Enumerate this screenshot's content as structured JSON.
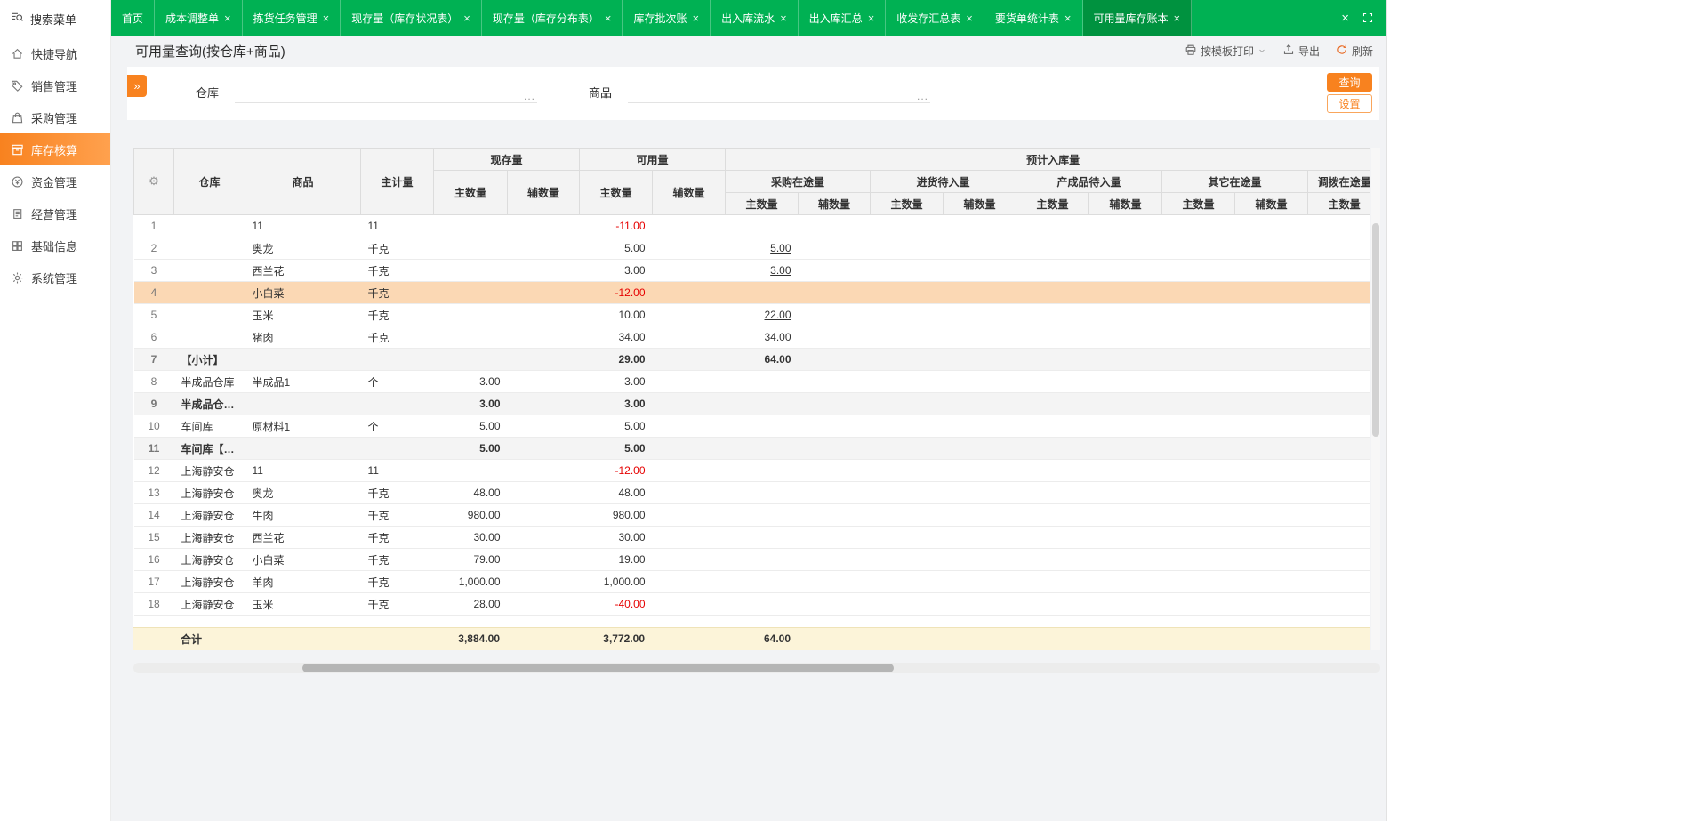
{
  "icons": {
    "gear": "⚙",
    "collapse": "»",
    "close": "×",
    "tab_close": "×",
    "picker_dots": "..."
  },
  "tab_bar": {
    "tabs": [
      {
        "label": "首页",
        "closable": false,
        "active": false
      },
      {
        "label": "成本调整单",
        "closable": true,
        "active": false
      },
      {
        "label": "拣货任务管理",
        "closable": true,
        "active": false
      },
      {
        "label": "现存量（库存状况表）",
        "closable": true,
        "active": false
      },
      {
        "label": "现存量（库存分布表）",
        "closable": true,
        "active": false
      },
      {
        "label": "库存批次账",
        "closable": true,
        "active": false
      },
      {
        "label": "出入库流水",
        "closable": true,
        "active": false
      },
      {
        "label": "出入库汇总",
        "closable": true,
        "active": false
      },
      {
        "label": "收发存汇总表",
        "closable": true,
        "active": false
      },
      {
        "label": "要货单统计表",
        "closable": true,
        "active": false
      },
      {
        "label": "可用量库存账本",
        "closable": true,
        "active": true
      }
    ]
  },
  "sidebar": {
    "search_label": "搜索菜单",
    "items": [
      {
        "id": "quick-nav",
        "icon": "quick-nav-icon",
        "label": "快捷导航",
        "active": false
      },
      {
        "id": "sales",
        "icon": "sales-icon",
        "label": "销售管理",
        "active": false
      },
      {
        "id": "purchase",
        "icon": "purchase-icon",
        "label": "采购管理",
        "active": false
      },
      {
        "id": "inventory",
        "icon": "inventory-icon",
        "label": "库存核算",
        "active": true
      },
      {
        "id": "funds",
        "icon": "funds-icon",
        "label": "资金管理",
        "active": false
      },
      {
        "id": "operations",
        "icon": "operations-icon",
        "label": "经营管理",
        "active": false
      },
      {
        "id": "base-info",
        "icon": "base-info-icon",
        "label": "基础信息",
        "active": false
      },
      {
        "id": "system",
        "icon": "system-icon",
        "label": "系统管理",
        "active": false
      }
    ]
  },
  "page": {
    "title": "可用量查询(按仓库+商品)",
    "tools": {
      "print": "按模板打印",
      "export": "导出",
      "refresh": "刷新"
    }
  },
  "filters": {
    "warehouse_label": "仓库",
    "warehouse_value": "",
    "product_label": "商品",
    "product_value": "",
    "query_button": "查询",
    "settings_button": "设置"
  },
  "table": {
    "headers": {
      "warehouse": "仓库",
      "product": "商品",
      "unit": "主计量",
      "stock_group": "现存量",
      "available_group": "可用量",
      "expected_group": "预计入库量",
      "purchase_transit": "采购在途量",
      "incoming_pending": "进货待入量",
      "finished_pending": "产成品待入量",
      "other_transit": "其它在途量",
      "transfer_transit": "调拨在途量",
      "main_qty": "主数量",
      "aux_qty": "辅数量"
    },
    "rows": [
      {
        "num": "1",
        "warehouse": "",
        "product": "11",
        "unit": "11",
        "avail_main": "-11.00"
      },
      {
        "num": "2",
        "warehouse": "",
        "product": "奥龙",
        "unit": "千克",
        "avail_main": "5.00",
        "purchase_main": "5.00",
        "purchase_link": true
      },
      {
        "num": "3",
        "warehouse": "",
        "product": "西兰花",
        "unit": "千克",
        "avail_main": "3.00",
        "purchase_main": "3.00",
        "purchase_link": true
      },
      {
        "num": "4",
        "warehouse": "",
        "product": "小白菜",
        "unit": "千克",
        "avail_main": "-12.00",
        "style": "highlight"
      },
      {
        "num": "5",
        "warehouse": "",
        "product": "玉米",
        "unit": "千克",
        "avail_main": "10.00",
        "purchase_main": "22.00",
        "purchase_link": true
      },
      {
        "num": "6",
        "warehouse": "",
        "product": "猪肉",
        "unit": "千克",
        "avail_main": "34.00",
        "purchase_main": "34.00",
        "purchase_link": true
      },
      {
        "num": "7",
        "warehouse": "【小计】",
        "avail_main": "29.00",
        "purchase_main": "64.00",
        "style": "subtotal"
      },
      {
        "num": "8",
        "warehouse": "半成品仓库",
        "product": "半成品1",
        "unit": "个",
        "stock_main": "3.00",
        "avail_main": "3.00"
      },
      {
        "num": "9",
        "warehouse": "半成品仓库【小计】",
        "stock_main": "3.00",
        "avail_main": "3.00",
        "style": "subtotal"
      },
      {
        "num": "10",
        "warehouse": "车间库",
        "product": "原材料1",
        "unit": "个",
        "stock_main": "5.00",
        "avail_main": "5.00"
      },
      {
        "num": "11",
        "warehouse": "车间库【小计】",
        "stock_main": "5.00",
        "avail_main": "5.00",
        "style": "subtotal"
      },
      {
        "num": "12",
        "warehouse": "上海静安仓",
        "product": "11",
        "unit": "11",
        "avail_main": "-12.00"
      },
      {
        "num": "13",
        "warehouse": "上海静安仓",
        "product": "奥龙",
        "unit": "千克",
        "stock_main": "48.00",
        "avail_main": "48.00"
      },
      {
        "num": "14",
        "warehouse": "上海静安仓",
        "product": "牛肉",
        "unit": "千克",
        "stock_main": "980.00",
        "avail_main": "980.00"
      },
      {
        "num": "15",
        "warehouse": "上海静安仓",
        "product": "西兰花",
        "unit": "千克",
        "stock_main": "30.00",
        "avail_main": "30.00"
      },
      {
        "num": "16",
        "warehouse": "上海静安仓",
        "product": "小白菜",
        "unit": "千克",
        "stock_main": "79.00",
        "avail_main": "19.00"
      },
      {
        "num": "17",
        "warehouse": "上海静安仓",
        "product": "羊肉",
        "unit": "千克",
        "stock_main": "1,000.00",
        "avail_main": "1,000.00"
      },
      {
        "num": "18",
        "warehouse": "上海静安仓",
        "product": "玉米",
        "unit": "千克",
        "stock_main": "28.00",
        "avail_main": "-40.00"
      }
    ],
    "total": {
      "label": "合计",
      "stock_main": "3,884.00",
      "avail_main": "3,772.00",
      "purchase_main": "64.00"
    }
  }
}
